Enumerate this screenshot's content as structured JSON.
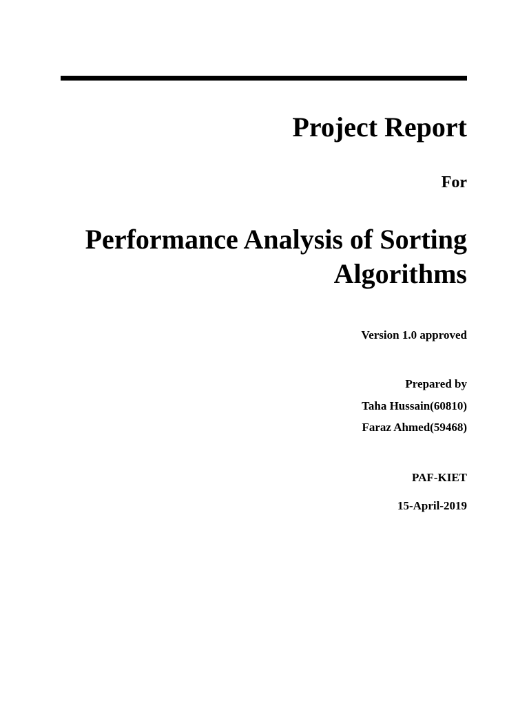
{
  "page": {
    "background_color": "#ffffff",
    "text_color": "#000000",
    "rule_color": "#000000"
  },
  "document": {
    "doc_type_heading": "Project Report",
    "for_label": "For",
    "title": "Performance Analysis of Sorting Algorithms",
    "version_line": "Version 1.0 approved",
    "prepared_by_label": "Prepared by",
    "authors": [
      "Taha Hussain(60810)",
      "Faraz Ahmed(59468)"
    ],
    "institution": "PAF-KIET",
    "date": "15-April-2019"
  }
}
